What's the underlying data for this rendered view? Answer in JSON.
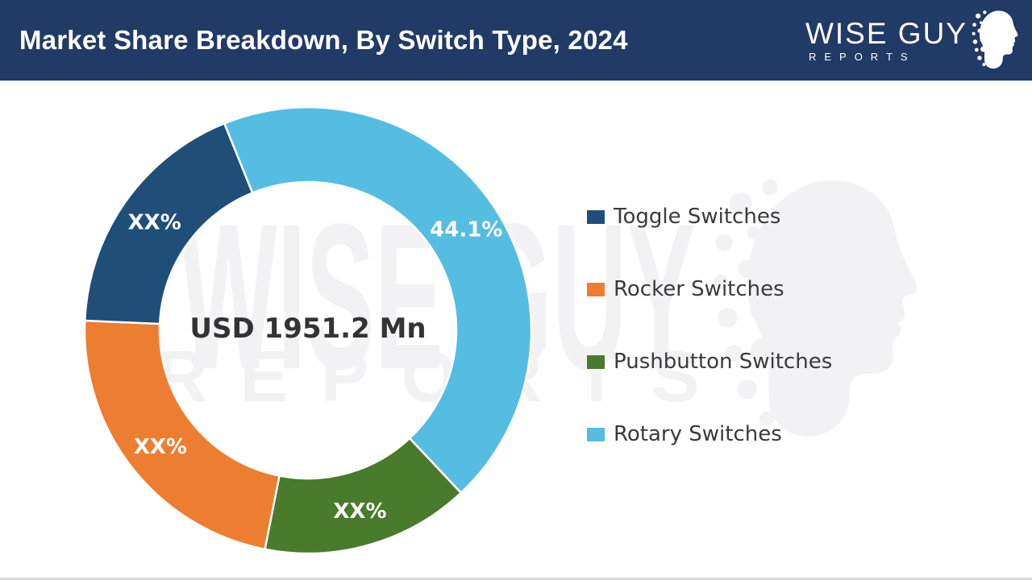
{
  "header": {
    "title": "Market Share Breakdown, By Switch Type, 2024",
    "background_color": "#213A66",
    "logo": {
      "brand_line1": "WISE GUY",
      "brand_line2": "REPORTS"
    }
  },
  "chart_data": {
    "type": "pie",
    "subtype": "donut",
    "title": "Market Share Breakdown, By Switch Type, 2024",
    "center_label": "USD 1951.2 Mn",
    "legend_position": "right",
    "start_angle_deg": -22,
    "direction": "clockwise",
    "segments": [
      {
        "name": "Rotary Switches",
        "label": "44.1%",
        "value_pct": 44.1,
        "color": "#55BCE2",
        "value_masked": false
      },
      {
        "name": "Pushbutton Switches",
        "label": "XX%",
        "value_pct": 15.1,
        "color": "#4A7A2C",
        "value_masked": true
      },
      {
        "name": "Rocker Switches",
        "label": "XX%",
        "value_pct": 22.6,
        "color": "#ED7D31",
        "value_masked": true
      },
      {
        "name": "Toggle Switches",
        "label": "XX%",
        "value_pct": 18.2,
        "color": "#1F4E79",
        "value_masked": true
      }
    ],
    "legend_order": [
      "Toggle Switches",
      "Rocker Switches",
      "Pushbutton Switches",
      "Rotary Switches"
    ],
    "note": "Slices labeled XX% are masked in the source; their value_pct is estimated from arc angles."
  },
  "watermark": {
    "line1": "WISE GUY",
    "line2": "REPORTS"
  }
}
